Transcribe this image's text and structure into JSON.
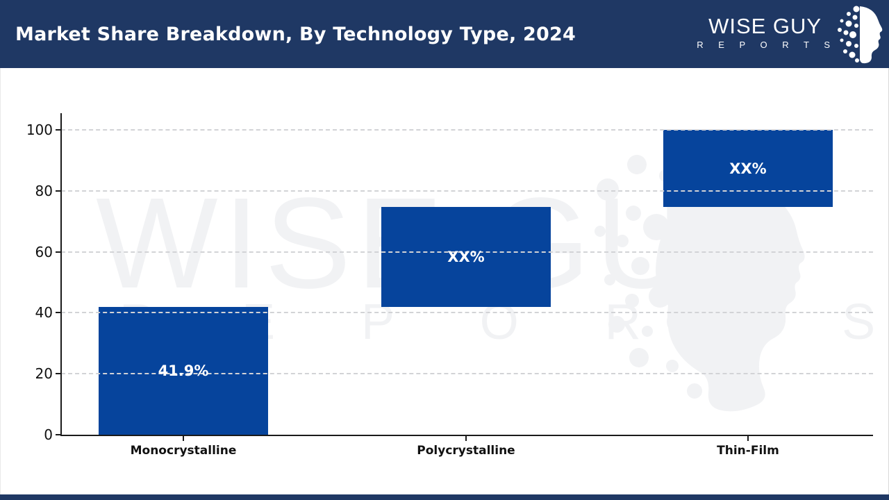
{
  "header": {
    "title": "Market Share Breakdown, By Technology Type, 2024",
    "logo": {
      "brand_line1": "WISE GUY",
      "brand_line2": "R E P O R T S"
    }
  },
  "watermark": {
    "text_large": "WISE GUY",
    "text_small": "R E P O R T S"
  },
  "colors": {
    "header_bg": "#1f3864",
    "footer_bg": "#1f3864",
    "bar": "#06449c",
    "grid": "#d2d3d6",
    "axis": "#1a1a1a",
    "watermark": "#f1f2f4",
    "title_text": "#ffffff",
    "bar_label_text": "#ffffff"
  },
  "chart_data": {
    "type": "bar",
    "subtype": "waterfall-breakdown",
    "title": "Market Share Breakdown, By Technology Type, 2024",
    "categories": [
      "Monocrystalline",
      "Polycrystalline",
      "Thin-Film"
    ],
    "segments": [
      {
        "category": "Monocrystalline",
        "start": 0,
        "end": 41.9,
        "value": 41.9,
        "label": "41.9%"
      },
      {
        "category": "Polycrystalline",
        "start": 41.9,
        "end": 74.7,
        "value": 32.8,
        "label": "XX%"
      },
      {
        "category": "Thin-Film",
        "start": 74.7,
        "end": 100,
        "value": 25.3,
        "label": "XX%"
      }
    ],
    "y_ticks": [
      0,
      20,
      40,
      60,
      80,
      100
    ],
    "ylim": [
      0,
      105
    ],
    "xlabel": "",
    "ylabel": "",
    "grid": "horizontal-dashed",
    "legend": "none",
    "bar_color": "#06449c"
  }
}
